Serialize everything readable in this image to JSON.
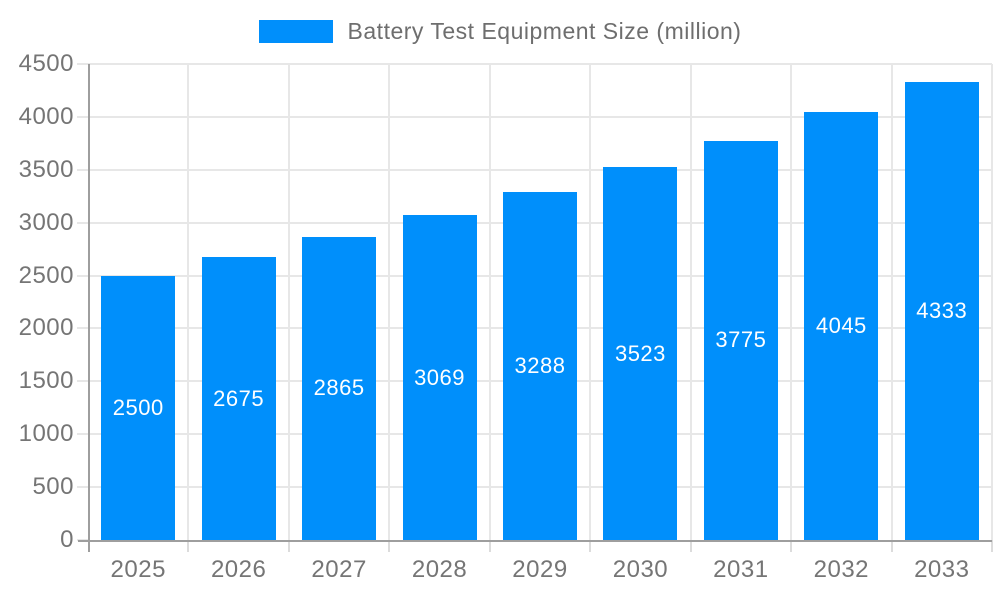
{
  "legend": {
    "label": "Battery Test Equipment Size (million)"
  },
  "chart_data": {
    "type": "bar",
    "title": "Battery Test Equipment Size (million)",
    "series_name": "Battery Test Equipment Size (million)",
    "categories": [
      "2025",
      "2026",
      "2027",
      "2028",
      "2029",
      "2030",
      "2031",
      "2032",
      "2033"
    ],
    "values": [
      2500,
      2675,
      2865,
      3069,
      3288,
      3523,
      3775,
      4045,
      4333
    ],
    "xlabel": "",
    "ylabel": "",
    "ylim": [
      0,
      4500
    ],
    "ytick_step": 500,
    "grid": true,
    "legend_position": "top",
    "value_labels": "inside-center",
    "colors": {
      "bar": "#008FFB",
      "bar_label_text": "#ffffff",
      "axis_line": "#9e9e9e",
      "gridline": "#e7e7e7",
      "axis_text": "#757575",
      "legend_text": "#6e6e6e",
      "background": "#ffffff"
    }
  }
}
